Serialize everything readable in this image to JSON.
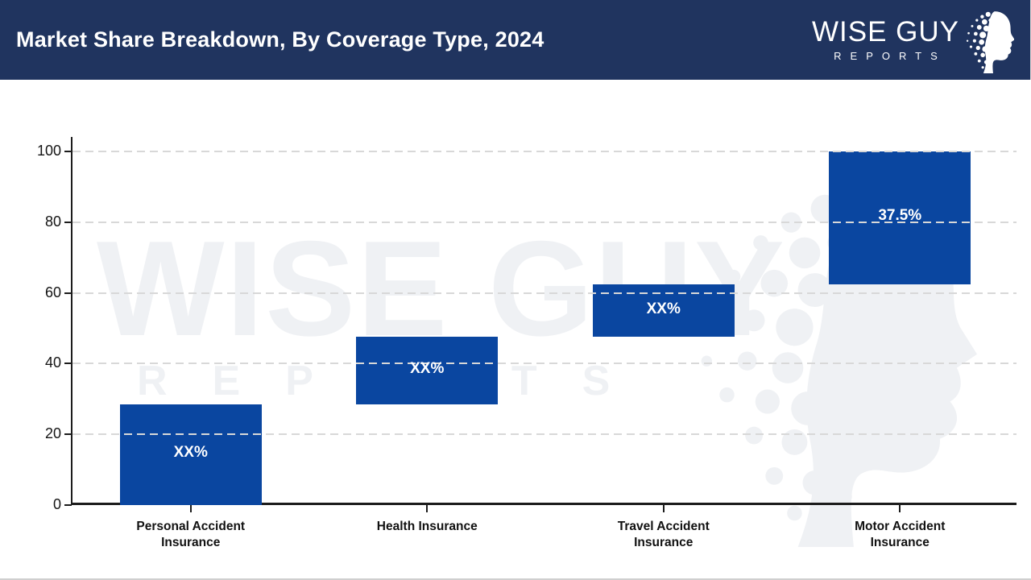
{
  "header": {
    "title": "Market Share Breakdown, By Coverage Type, 2024",
    "logo": {
      "name": "WISE GUY",
      "tagline": "REPORTS"
    }
  },
  "watermark": {
    "line1": "WISE GUY",
    "line2": "REPORTS"
  },
  "colors": {
    "header_bg": "#20345f",
    "bar": "#0a46a0",
    "bar_label": "#ffffff",
    "gridline": "#d8d8d8",
    "axis": "#1c1c1c",
    "watermark": "#eff1f4",
    "text": "#111111"
  },
  "chart_data": {
    "type": "bar",
    "subtype": "waterfall-segments",
    "title": "Market Share Breakdown, By Coverage Type, 2024",
    "xlabel": "",
    "ylabel": "",
    "ylim": [
      0,
      100
    ],
    "yticks": [
      0,
      20,
      40,
      60,
      80,
      100
    ],
    "grid": "horizontal-dashed-over-bars",
    "legend": "none",
    "categories": [
      "Personal Accident Insurance",
      "Health Insurance",
      "Travel Accident Insurance",
      "Motor Accident Insurance"
    ],
    "segments": [
      {
        "category": "Personal Accident\nInsurance",
        "start": 0,
        "end": 28.5,
        "label": "XX%"
      },
      {
        "category": "Health Insurance",
        "start": 28.5,
        "end": 47.5,
        "label": "XX%"
      },
      {
        "category": "Travel Accident\nInsurance",
        "start": 47.5,
        "end": 62.5,
        "label": "XX%"
      },
      {
        "category": "Motor Accident\nInsurance",
        "start": 62.5,
        "end": 100,
        "label": "37.5%"
      }
    ]
  }
}
